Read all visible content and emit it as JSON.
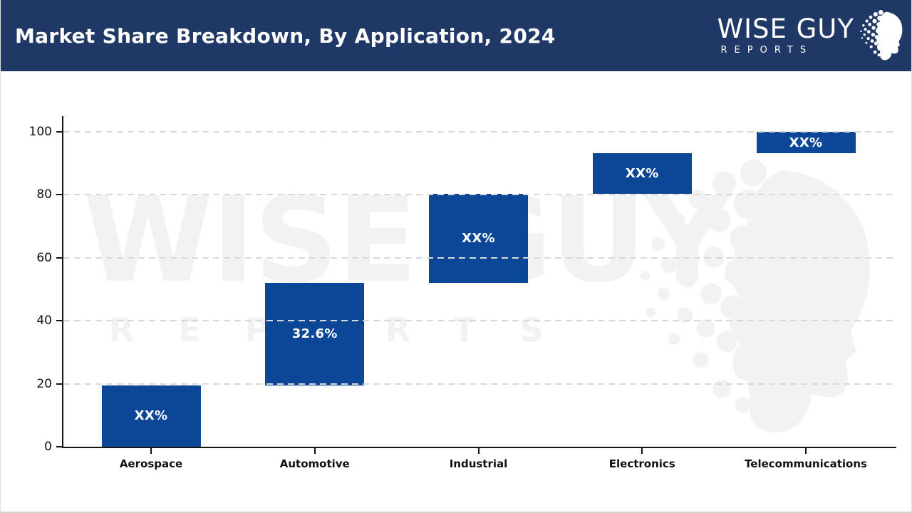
{
  "header": {
    "title": "Market Share Breakdown, By Application, 2024",
    "logo": {
      "line1": "WISE GUY",
      "line2": "REPORTS"
    }
  },
  "watermark": {
    "line1": "WISE GUY",
    "line2": "REPORTS"
  },
  "colors": {
    "header_bg": "#203866",
    "bar": "#0b4697",
    "bar_label": "#ffffff",
    "grid": "#d9d9d9",
    "axis": "#151515",
    "watermark": "#f2f2f2",
    "title_text": "#ffffff"
  },
  "chart_data": {
    "type": "bar",
    "subtype": "waterfall",
    "title": "Market Share Breakdown, By Application, 2024",
    "categories": [
      "Aerospace",
      "Automotive",
      "Industrial",
      "Electronics",
      "Telecommunications"
    ],
    "segments": [
      {
        "category": "Aerospace",
        "start": 0,
        "end": 19.5,
        "label": "XX%"
      },
      {
        "category": "Automotive",
        "start": 19.5,
        "end": 52.1,
        "label": "32.6%",
        "value": 32.6
      },
      {
        "category": "Industrial",
        "start": 52.1,
        "end": 80.4,
        "label": "XX%"
      },
      {
        "category": "Electronics",
        "start": 80.4,
        "end": 93.2,
        "label": "XX%"
      },
      {
        "category": "Telecommunications",
        "start": 93.2,
        "end": 100,
        "label": "XX%"
      }
    ],
    "y_ticks": [
      0,
      20,
      40,
      60,
      80,
      100
    ],
    "ylim": [
      0,
      105
    ],
    "xlabel": "",
    "ylabel": "",
    "grid": "dashed-horizontal",
    "legend": "none"
  }
}
